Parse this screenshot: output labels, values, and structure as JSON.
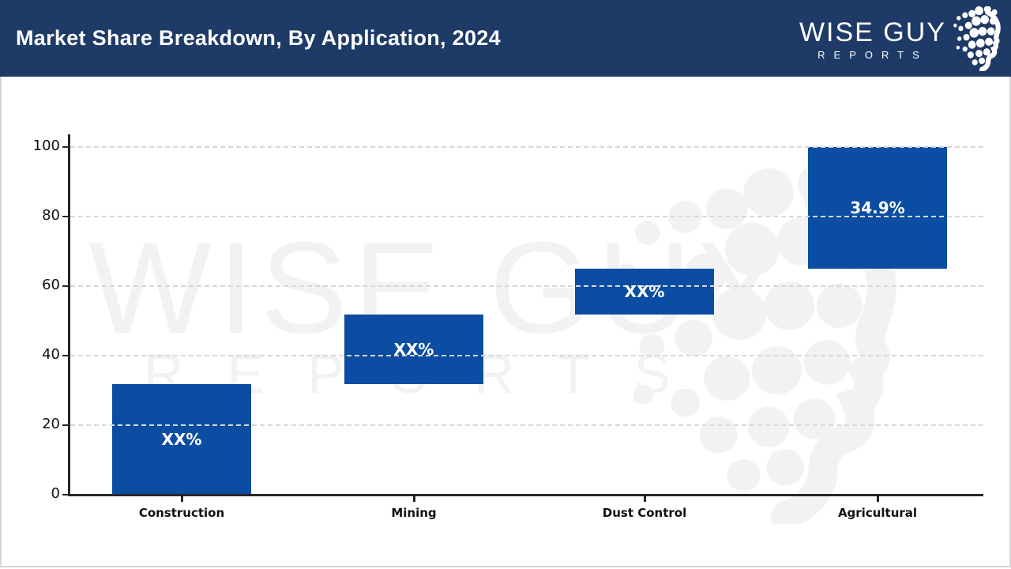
{
  "header": {
    "title": "Market Share Breakdown, By Application, 2024",
    "logo": {
      "name": "WISE GUY",
      "subtitle": "REPORTS"
    }
  },
  "watermark": {
    "line1": "WISE GUY",
    "line2": "REPORTS"
  },
  "colors": {
    "header_bg": "#1e3a66",
    "bar": "#0b4da2",
    "axis": "#262626",
    "grid": "#d8d8d8",
    "bar_label": "#ffffff",
    "watermark": "#f2f2f4",
    "page_border": "#d6d6d6"
  },
  "chart_data": {
    "type": "bar",
    "subtype": "waterfall",
    "title": "Market Share Breakdown, By Application, 2024",
    "categories": [
      "Construction",
      "Mining",
      "Dust Control",
      "Agricultural"
    ],
    "segments": [
      {
        "category": "Construction",
        "start": 0,
        "end": 31.8,
        "value": 31.8,
        "label": "XX%"
      },
      {
        "category": "Mining",
        "start": 31.8,
        "end": 51.8,
        "value": 20.0,
        "label": "XX%"
      },
      {
        "category": "Dust Control",
        "start": 51.8,
        "end": 65.1,
        "value": 13.3,
        "label": "XX%"
      },
      {
        "category": "Agricultural",
        "start": 65.1,
        "end": 100,
        "value": 34.9,
        "label": "34.9%"
      }
    ],
    "xlabel": "",
    "ylabel": "",
    "ylim": [
      0,
      104
    ],
    "yticks": [
      0,
      20,
      40,
      60,
      80,
      100
    ],
    "grid": "horizontal-dashed",
    "legend": "none",
    "unit": "percent"
  }
}
